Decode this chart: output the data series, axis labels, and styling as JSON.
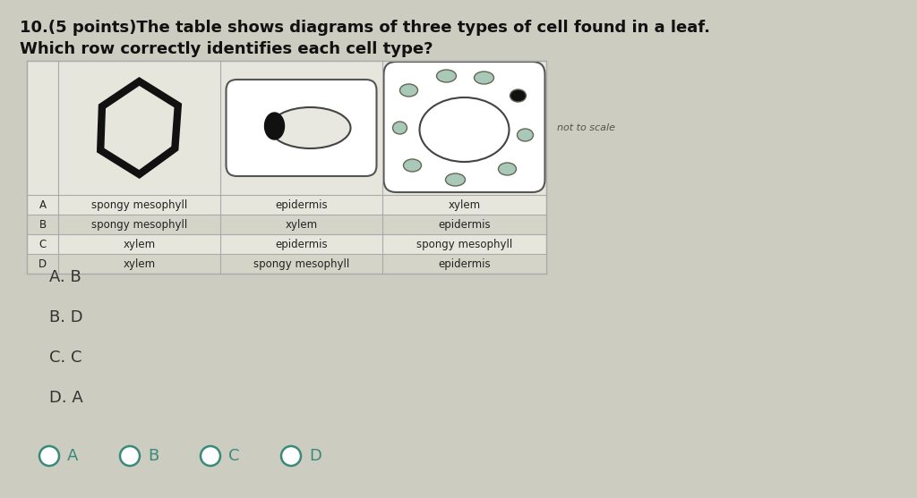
{
  "title_line1": "10.(5 points)The table shows diagrams of three types of cell found in a leaf.",
  "title_line2": "Which row correctly identifies each cell type?",
  "table_rows": [
    [
      "A",
      "spongy mesophyll",
      "epidermis",
      "xylem"
    ],
    [
      "B",
      "spongy mesophyll",
      "xylem",
      "epidermis"
    ],
    [
      "C",
      "xylem",
      "epidermis",
      "spongy mesophyll"
    ],
    [
      "D",
      "xylem",
      "spongy mesophyll",
      "epidermis"
    ]
  ],
  "choices": [
    "A. B",
    "B. D",
    "C. C",
    "D. A"
  ],
  "radio_labels": [
    "A",
    "B",
    "C",
    "D"
  ],
  "bg_color": "#ccccc0",
  "table_bg": "#e6e6dc",
  "title_color": "#111111",
  "choice_color": "#333333",
  "radio_color": "#3a8a7a",
  "not_to_scale_text": "not to scale",
  "grid_color": "#aaaaaa"
}
